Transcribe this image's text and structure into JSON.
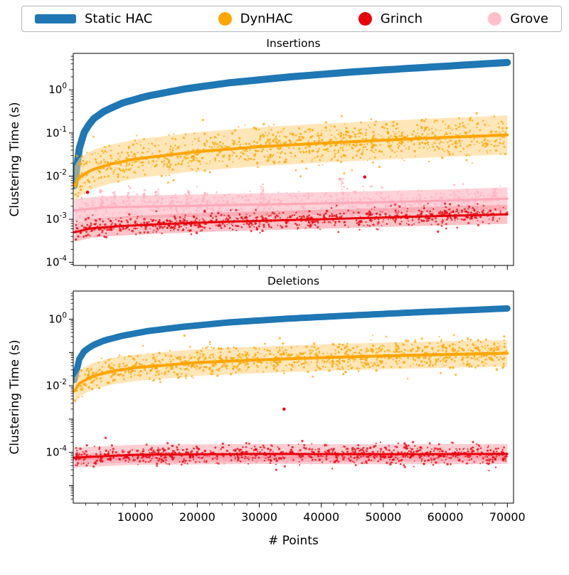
{
  "legend": {
    "items": [
      {
        "label": "Static HAC",
        "color": "#1f77b4",
        "shape": "line"
      },
      {
        "label": "DynHAC",
        "color": "#ffa500",
        "shape": "dot"
      },
      {
        "label": "Grinch",
        "color": "#e8000b",
        "shape": "dot"
      },
      {
        "label": "Grove",
        "color": "#ffc0cb",
        "shape": "dot"
      }
    ]
  },
  "chart_data": [
    {
      "id": "insertions",
      "type": "scatter",
      "title": "Insertions",
      "xlabel": "",
      "ylabel": "Clustering Time (s)",
      "xlim": [
        0,
        71000
      ],
      "xticks": [
        10000,
        20000,
        30000,
        40000,
        50000,
        60000,
        70000
      ],
      "xtick_labels": [
        "10000",
        "20000",
        "30000",
        "40000",
        "50000",
        "60000",
        "70000"
      ],
      "x_minor_step": 2000,
      "ylog": true,
      "ylim": [
        8.5e-05,
        7
      ],
      "ytick_exponents": [
        0,
        -1,
        -2,
        -3,
        -4
      ],
      "show_xticklabels": false,
      "series": [
        {
          "name": "Static HAC",
          "color": "#1f77b4",
          "style": "line",
          "line_width": 10,
          "x": [
            200,
            700,
            1500,
            3000,
            5000,
            8000,
            12000,
            18000,
            25000,
            35000,
            45000,
            55000,
            70000
          ],
          "y": [
            0.006,
            0.03,
            0.09,
            0.2,
            0.32,
            0.5,
            0.72,
            1.05,
            1.45,
            2.0,
            2.6,
            3.2,
            4.3
          ]
        },
        {
          "name": "DynHAC",
          "color": "#ffa500",
          "band_color": "#ffd27f",
          "band_opacity": 0.55,
          "band": 0.45,
          "dots": 1100,
          "line_width": 4,
          "x": [
            200,
            1000,
            3000,
            6000,
            10000,
            20000,
            30000,
            40000,
            50000,
            60000,
            70000
          ],
          "y": [
            0.006,
            0.0095,
            0.014,
            0.019,
            0.025,
            0.037,
            0.048,
            0.058,
            0.068,
            0.079,
            0.09
          ]
        },
        {
          "name": "Grove",
          "color": "#ffb3c0",
          "band_color": "#ffccd5",
          "band_opacity": 0.9,
          "band": 0.26,
          "dots": 700,
          "line_width": 3,
          "line_color": "#ffa8b8",
          "x": [
            200,
            5000,
            15000,
            30000,
            45000,
            60000,
            70000
          ],
          "y": [
            0.0016,
            0.0019,
            0.002,
            0.0022,
            0.0024,
            0.0027,
            0.003
          ],
          "spikes": [
            [
              4500,
              0.005
            ],
            [
              6500,
              0.0045
            ],
            [
              9000,
              0.006
            ],
            [
              11500,
              0.0048
            ],
            [
              13500,
              0.0052
            ],
            [
              16000,
              0.0045
            ],
            [
              18500,
              0.005
            ],
            [
              21000,
              0.0042
            ],
            [
              30500,
              0.0065
            ],
            [
              43500,
              0.009
            ],
            [
              68000,
              0.005
            ]
          ],
          "outliers": [
            [
              43000,
              0.0085
            ],
            [
              45500,
              0.0042
            ]
          ]
        },
        {
          "name": "Grinch",
          "color": "#e8000b",
          "band_color": "#ff9098",
          "band_opacity": 0.55,
          "band": 0.22,
          "dots": 800,
          "line_width": 3,
          "x": [
            200,
            3000,
            8000,
            15000,
            25000,
            40000,
            55000,
            70000
          ],
          "y": [
            0.0005,
            0.00062,
            0.0007,
            0.00078,
            0.00088,
            0.001,
            0.00115,
            0.0013
          ],
          "outliers": [
            [
              2300,
              0.0042
            ],
            [
              47000,
              0.0095
            ]
          ]
        }
      ]
    },
    {
      "id": "deletions",
      "type": "scatter",
      "title": "Deletions",
      "xlabel": "# Points",
      "ylabel": "Clustering Time (s)",
      "xlim": [
        0,
        71000
      ],
      "xticks": [
        10000,
        20000,
        30000,
        40000,
        50000,
        60000,
        70000
      ],
      "xtick_labels": [
        "10000",
        "20000",
        "30000",
        "40000",
        "50000",
        "60000",
        "70000"
      ],
      "x_minor_step": 2000,
      "ylog": true,
      "ylim": [
        3e-06,
        7
      ],
      "ytick_exponents": [
        0,
        -2,
        -4
      ],
      "show_xticklabels": true,
      "series": [
        {
          "name": "Static HAC",
          "color": "#1f77b4",
          "style": "line",
          "line_width": 9,
          "x": [
            200,
            700,
            1500,
            3000,
            5000,
            8000,
            12000,
            18000,
            25000,
            35000,
            45000,
            55000,
            70000
          ],
          "y": [
            0.015,
            0.05,
            0.1,
            0.16,
            0.23,
            0.32,
            0.44,
            0.6,
            0.8,
            1.05,
            1.3,
            1.6,
            2.1
          ]
        },
        {
          "name": "DynHAC",
          "color": "#ffa500",
          "band_color": "#ffd27f",
          "band_opacity": 0.55,
          "band": 0.4,
          "dots": 1100,
          "line_width": 4,
          "x": [
            200,
            1000,
            3000,
            6000,
            10000,
            20000,
            30000,
            40000,
            50000,
            60000,
            70000
          ],
          "y": [
            0.007,
            0.012,
            0.019,
            0.027,
            0.035,
            0.05,
            0.06,
            0.07,
            0.079,
            0.087,
            0.095
          ]
        },
        {
          "name": "Grove",
          "color": "#ffb3c0",
          "band_color": "#ffccd5",
          "band_opacity": 0.9,
          "band": 0.14,
          "dots": 500,
          "line_width": 3,
          "line_color": "#ffa8b8",
          "x": [
            200,
            20000,
            45000,
            70000
          ],
          "y": [
            6.5e-05,
            7e-05,
            7.2e-05,
            7.5e-05
          ]
        },
        {
          "name": "Grinch",
          "color": "#e8000b",
          "band_color": "#ff9098",
          "band_opacity": 0.45,
          "band": 0.3,
          "dots": 900,
          "line_width": 3,
          "x": [
            200,
            10000,
            30000,
            50000,
            70000
          ],
          "y": [
            7e-05,
            8.5e-05,
            9e-05,
            8.8e-05,
            9e-05
          ],
          "outliers": [
            [
              34000,
              0.002
            ]
          ]
        }
      ]
    }
  ]
}
